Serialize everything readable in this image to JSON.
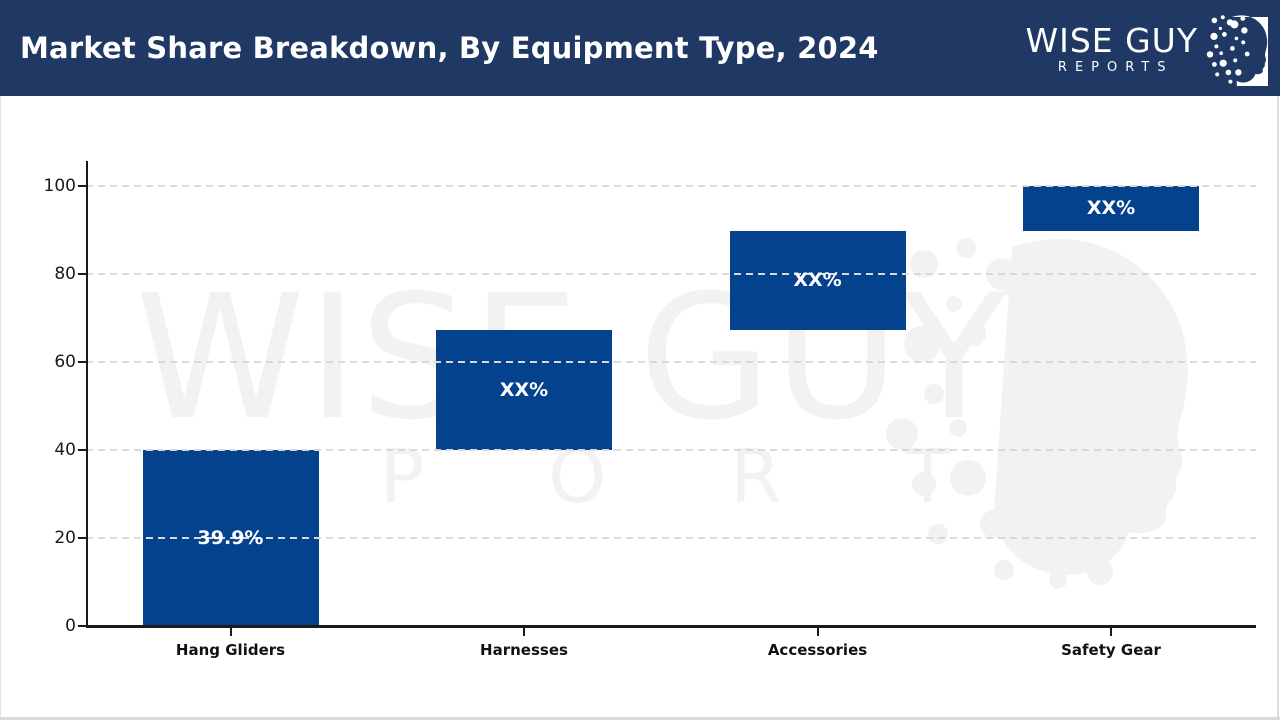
{
  "header": {
    "title": "Market Share Breakdown, By Equipment Type, 2024",
    "background": "#1F3864",
    "text_color": "#FFFFFF",
    "logo": {
      "wordmark": "WISE GUY",
      "subtitle": "REPORTS"
    }
  },
  "watermark": {
    "wordmark": "WISE GUY",
    "subtitle": "P O R T S",
    "color": "#F2F2F2"
  },
  "chart_data": {
    "type": "bar",
    "subtype": "waterfall",
    "title": "Market Share Breakdown, By Equipment Type, 2024",
    "categories": [
      "Hang Gliders",
      "Harnesses",
      "Accessories",
      "Safety Gear"
    ],
    "segments": [
      {
        "category": "Hang Gliders",
        "start": 0,
        "end": 39.9,
        "label": "39.9%"
      },
      {
        "category": "Harnesses",
        "start": 39.9,
        "end": 67.3,
        "label": "XX%"
      },
      {
        "category": "Accessories",
        "start": 67.3,
        "end": 89.8,
        "label": "XX%"
      },
      {
        "category": "Safety Gear",
        "start": 89.8,
        "end": 100,
        "label": "XX%"
      }
    ],
    "y_ticks": [
      0,
      20,
      40,
      60,
      80,
      100
    ],
    "ylim": [
      0,
      106
    ],
    "xlabel": "",
    "ylabel": "",
    "grid": "horizontal-dashed",
    "grid_color": "#D9D9D9",
    "axis_color": "#1A1A1A",
    "bar_color": "#04428E",
    "bar_label_color": "#FFFFFF",
    "legend": "none"
  }
}
